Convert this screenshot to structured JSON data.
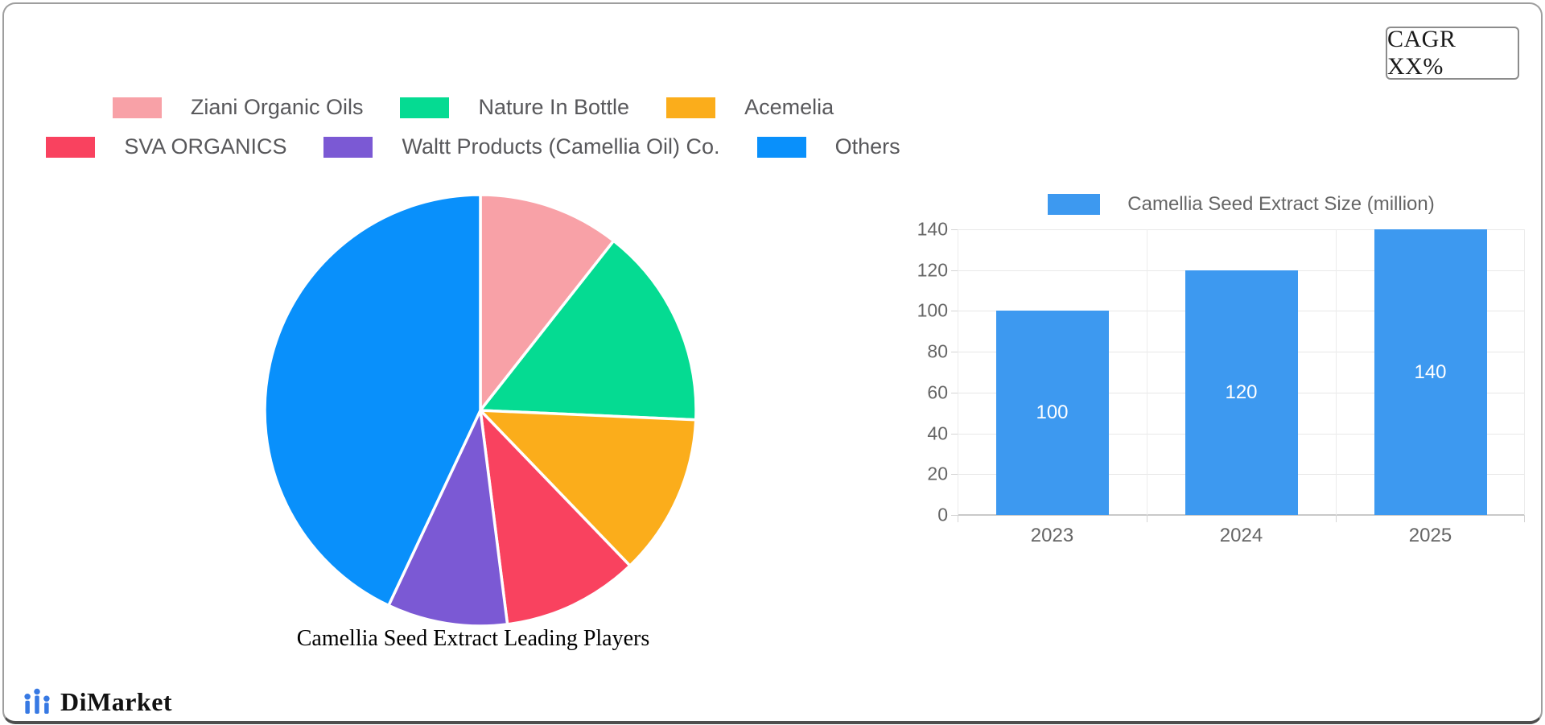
{
  "badge": {
    "label": "CAGR XX%"
  },
  "brand": {
    "name": "DiMarket",
    "icon": "bar-chart-logo-icon",
    "color": "#3779e3"
  },
  "chart_data": [
    {
      "type": "pie",
      "title": "Camellia Seed Extract Leading Players",
      "labels": [
        "Ziani Organic Oils",
        "Nature In Bottle",
        "Acemelia",
        "SVA ORGANICS",
        "Waltt Products (Camellia Oil) Co.",
        "Others"
      ],
      "values": [
        10.6,
        15.1,
        12.1,
        10.2,
        9.0,
        43.0
      ],
      "unit": "%",
      "colors": [
        "#F8A1A7",
        "#05DB92",
        "#FBAD1B",
        "#F9425F",
        "#7B59D4",
        "#0990FB"
      ],
      "legend_position": "top",
      "legend_rows": [
        [
          0,
          1,
          2
        ],
        [
          3,
          4,
          5
        ]
      ],
      "start_angle_deg": 0,
      "direction": "clockwise",
      "slice_border_color": "#ffffff"
    },
    {
      "type": "bar",
      "series_label": "Camellia Seed Extract Size (million)",
      "categories": [
        "2023",
        "2024",
        "2025"
      ],
      "values": [
        100,
        120,
        140
      ],
      "bar_color": "#3D99F0",
      "title": "",
      "xlabel": "",
      "ylabel": "",
      "ylim": [
        0,
        140
      ],
      "ytick_step": 20,
      "grid": true,
      "legend_position": "top",
      "data_labels": {
        "position": "center",
        "color": "#ffffff"
      }
    }
  ]
}
